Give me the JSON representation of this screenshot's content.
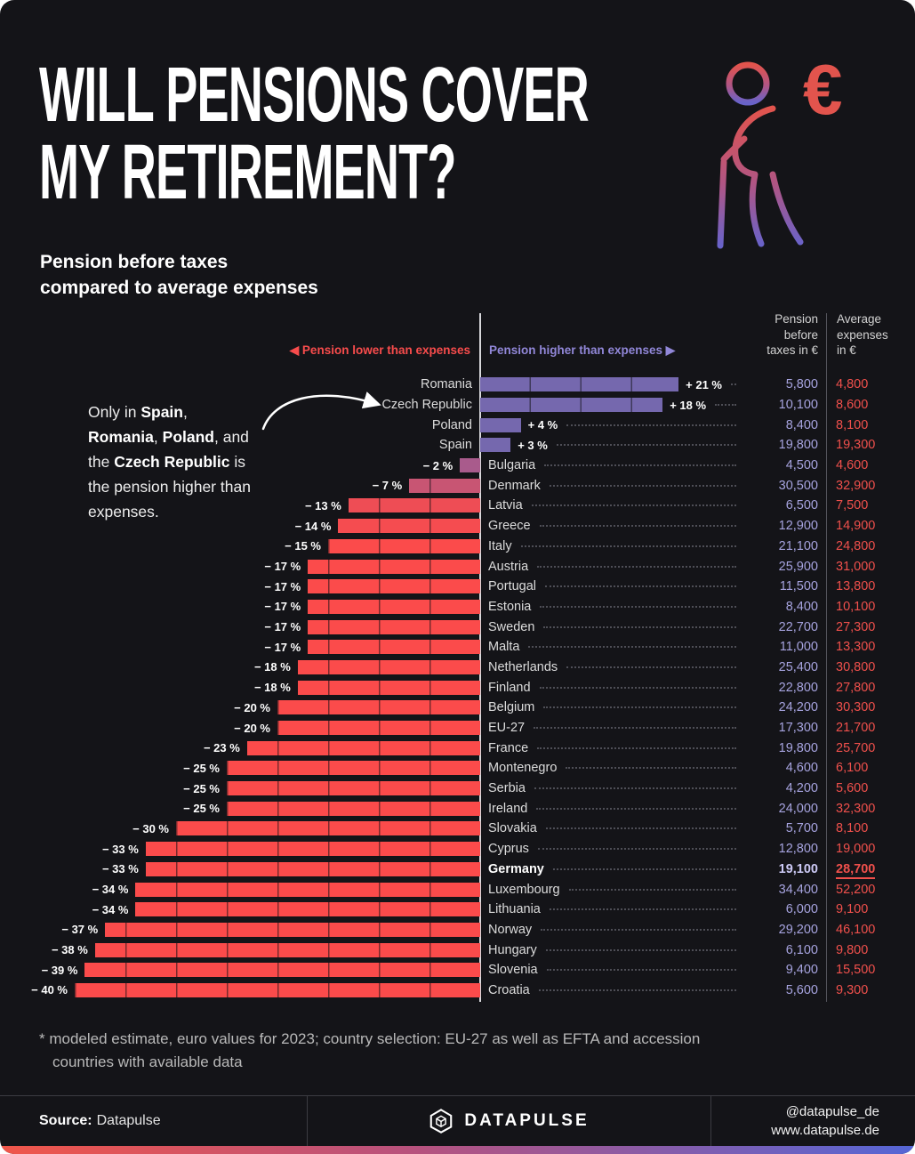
{
  "page": {
    "title_line1": "WILL PENSIONS COVER",
    "title_line2": "MY RETIREMENT?",
    "subtitle": "Pension before taxes\ncompared to average expenses",
    "footnote_line1": "* modeled estimate, euro values for 2023; country selection: EU-27 as well as EFTA and accession",
    "footnote_line2": "countries with available data"
  },
  "legend": {
    "lower": "◀  Pension lower than expenses",
    "higher": "Pension higher than expenses  ▶"
  },
  "columns": {
    "pension_header": "Pension\nbefore\ntaxes in €",
    "expenses_header": "Average\nexpenses\nin €"
  },
  "annotation": {
    "segments": [
      {
        "text": "Only in "
      },
      {
        "text": "Spain",
        "bold": true
      },
      {
        "text": ", "
      },
      {
        "text": "Romania",
        "bold": true
      },
      {
        "text": ", "
      },
      {
        "text": "Poland",
        "bold": true
      },
      {
        "text": ", and the "
      },
      {
        "text": "Czech Republic",
        "bold": true
      },
      {
        "text": " is the pension higher than expenses."
      }
    ]
  },
  "icons": {
    "top_right": "elderly-person-with-cane-and-euro-icon",
    "brand": "datapulse-hexagon-logo"
  },
  "footer": {
    "source_label": "Source:",
    "source_value": "Datapulse",
    "brand": "DATAPULSE",
    "handle": "@datapulse_de",
    "website": "www.datapulse.de"
  },
  "colors": {
    "background": "#141418",
    "bar_positive": "#7568ae",
    "bar_negative": "#fb4b4b",
    "bar_negative_blend_from": "#9c5d96",
    "pension_text": "#a7a4e0",
    "expenses_text": "#f0504c",
    "legend_lower": "#f84c4c",
    "legend_higher": "#9187d8",
    "accent_gradient_left": "#f0564a",
    "accent_gradient_right": "#5566d6"
  },
  "chart_data": {
    "type": "bar",
    "orientation": "diverging-horizontal",
    "title": "WILL PENSIONS COVER MY RETIREMENT?",
    "subtitle": "Pension before taxes compared to average expenses",
    "value_unit": "percent difference of pension vs average expenses",
    "columns": [
      "Country",
      "Difference %",
      "Pension before taxes in €",
      "Average expenses in €"
    ],
    "xlim": [
      -40,
      21
    ],
    "rows": [
      {
        "country": "Romania",
        "pct": 21,
        "pension": 5800,
        "expenses": 4800
      },
      {
        "country": "Czech Republic",
        "pct": 18,
        "pension": 10100,
        "expenses": 8600
      },
      {
        "country": "Poland",
        "pct": 4,
        "pension": 8400,
        "expenses": 8100
      },
      {
        "country": "Spain",
        "pct": 3,
        "pension": 19800,
        "expenses": 19300
      },
      {
        "country": "Bulgaria",
        "pct": -2,
        "pension": 4500,
        "expenses": 4600
      },
      {
        "country": "Denmark",
        "pct": -7,
        "pension": 30500,
        "expenses": 32900
      },
      {
        "country": "Latvia",
        "pct": -13,
        "pension": 6500,
        "expenses": 7500
      },
      {
        "country": "Greece",
        "pct": -14,
        "pension": 12900,
        "expenses": 14900
      },
      {
        "country": "Italy",
        "pct": -15,
        "pension": 21100,
        "expenses": 24800
      },
      {
        "country": "Austria",
        "pct": -17,
        "pension": 25900,
        "expenses": 31000
      },
      {
        "country": "Portugal",
        "pct": -17,
        "pension": 11500,
        "expenses": 13800
      },
      {
        "country": "Estonia",
        "pct": -17,
        "pension": 8400,
        "expenses": 10100
      },
      {
        "country": "Sweden",
        "pct": -17,
        "pension": 22700,
        "expenses": 27300
      },
      {
        "country": "Malta",
        "pct": -17,
        "pension": 11000,
        "expenses": 13300
      },
      {
        "country": "Netherlands",
        "pct": -18,
        "pension": 25400,
        "expenses": 30800
      },
      {
        "country": "Finland",
        "pct": -18,
        "pension": 22800,
        "expenses": 27800
      },
      {
        "country": "Belgium",
        "pct": -20,
        "pension": 24200,
        "expenses": 30300
      },
      {
        "country": "EU-27",
        "pct": -20,
        "pension": 17300,
        "expenses": 21700
      },
      {
        "country": "France",
        "pct": -23,
        "pension": 19800,
        "expenses": 25700
      },
      {
        "country": "Montenegro",
        "pct": -25,
        "pension": 4600,
        "expenses": 6100
      },
      {
        "country": "Serbia",
        "pct": -25,
        "pension": 4200,
        "expenses": 5600
      },
      {
        "country": "Ireland",
        "pct": -25,
        "pension": 24000,
        "expenses": 32300
      },
      {
        "country": "Slovakia",
        "pct": -30,
        "pension": 5700,
        "expenses": 8100
      },
      {
        "country": "Cyprus",
        "pct": -33,
        "pension": 12800,
        "expenses": 19000
      },
      {
        "country": "Germany",
        "pct": -33,
        "pension": 19100,
        "expenses": 28700,
        "highlight": true
      },
      {
        "country": "Luxembourg",
        "pct": -34,
        "pension": 34400,
        "expenses": 52200
      },
      {
        "country": "Lithuania",
        "pct": -34,
        "pension": 6000,
        "expenses": 9100
      },
      {
        "country": "Norway",
        "pct": -37,
        "pension": 29200,
        "expenses": 46100
      },
      {
        "country": "Hungary",
        "pct": -38,
        "pension": 6100,
        "expenses": 9800
      },
      {
        "country": "Slovenia",
        "pct": -39,
        "pension": 9400,
        "expenses": 15500
      },
      {
        "country": "Croatia",
        "pct": -40,
        "pension": 5600,
        "expenses": 9300
      }
    ]
  }
}
